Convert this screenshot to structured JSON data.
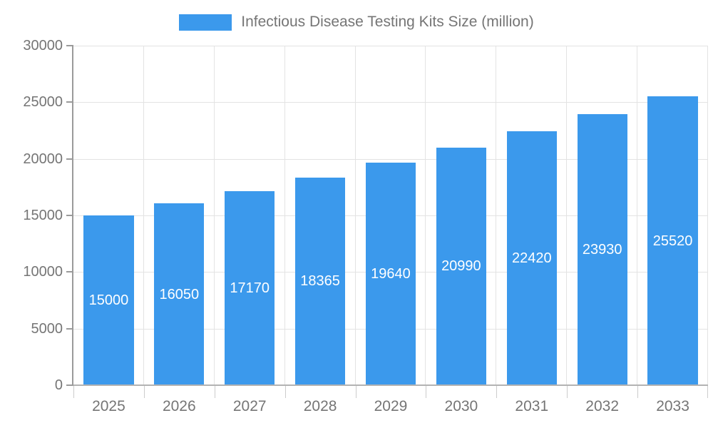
{
  "legend": {
    "label": "Infectious Disease Testing Kits Size (million)"
  },
  "chart_data": {
    "type": "bar",
    "title": "Infectious Disease Testing Kits Size (million)",
    "series_name": "Infectious Disease Testing Kits Size (million)",
    "categories": [
      "2025",
      "2026",
      "2027",
      "2028",
      "2029",
      "2030",
      "2031",
      "2032",
      "2033"
    ],
    "values": [
      15000,
      16050,
      17170,
      18365,
      19640,
      20990,
      22420,
      23930,
      25520
    ],
    "bar_value_labels": [
      "15000",
      "16050",
      "17170",
      "18365",
      "19640",
      "20990",
      "22420",
      "23930",
      "25520"
    ],
    "xlabel": "",
    "ylabel": "",
    "ylim": [
      0,
      30000
    ],
    "yticks": [
      0,
      5000,
      10000,
      15000,
      20000,
      25000,
      30000
    ],
    "ytick_labels": [
      "0",
      "5000",
      "10000",
      "15000",
      "20000",
      "25000",
      "30000"
    ],
    "grid": true,
    "legend_position": "top-center",
    "colors": {
      "bar": "#3B99EC",
      "bar_label_text": "#FFFFFF",
      "axis_label_text": "#757575",
      "legend_text": "#757575",
      "gridline": "#E3E3E3",
      "y_axis_line": "#9A9A9A",
      "x_axis_line": "#B3B3B3",
      "x_tick": "#CCCCCC",
      "y_tick": "#9A9A9A",
      "background": "#FFFFFF"
    }
  }
}
